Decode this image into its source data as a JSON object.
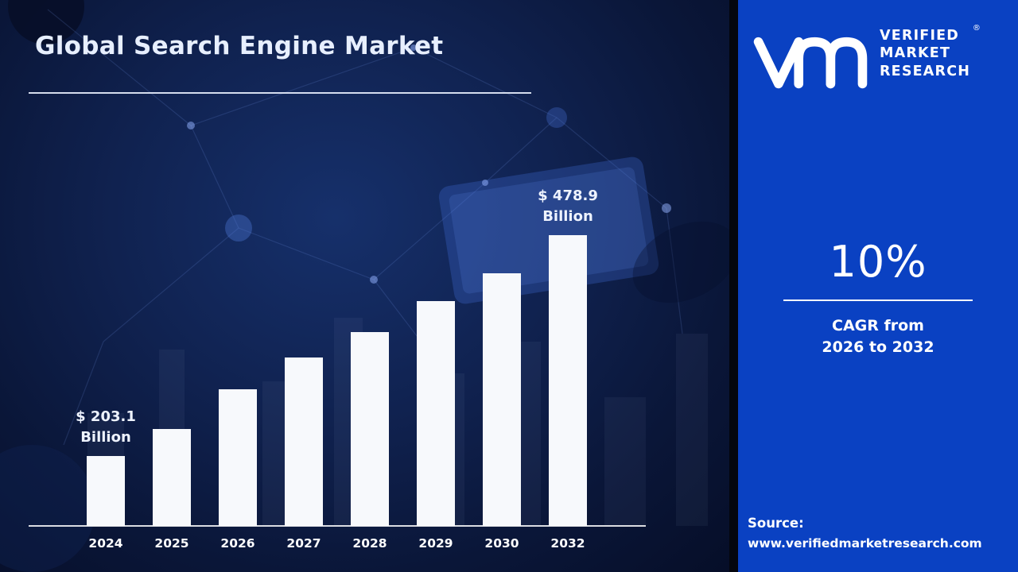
{
  "page": {
    "title": "Global Search Engine Market"
  },
  "chart_data": {
    "type": "bar",
    "title": "Global Search Engine Market",
    "unit": "USD Billion",
    "categories": [
      "2024",
      "2025",
      "2026",
      "2027",
      "2028",
      "2029",
      "2030",
      "2032"
    ],
    "values": [
      203.1,
      237,
      286,
      326,
      358,
      397,
      431,
      478.9
    ],
    "bar_labels": [
      {
        "value_text": "$ 203.1",
        "unit_text": "Billion"
      },
      null,
      null,
      null,
      null,
      null,
      null,
      {
        "value_text": "$ 478.9",
        "unit_text": "Billion"
      }
    ],
    "ylim": [
      0,
      500
    ],
    "grid": false,
    "legend": false,
    "bar_color": "#f7f9fc",
    "notes": "intermediate 2025-2030 values estimated from bar heights; first and last values labeled on chart"
  },
  "sidebar": {
    "logo": {
      "brand_lines": [
        "VERIFIED",
        "MARKET",
        "RESEARCH"
      ],
      "registered_mark": "®"
    },
    "cagr": {
      "value": "10%",
      "label_line1": "CAGR from",
      "label_line2": "2026 to 2032"
    },
    "source": {
      "label": "Source:",
      "url": "www.verifiedmarketresearch.com"
    }
  },
  "colors": {
    "left_background": "#102250",
    "panel_background": "#0a41c2",
    "bar": "#f7f9fc",
    "text": "#ffffff",
    "title": "#e7efff"
  }
}
